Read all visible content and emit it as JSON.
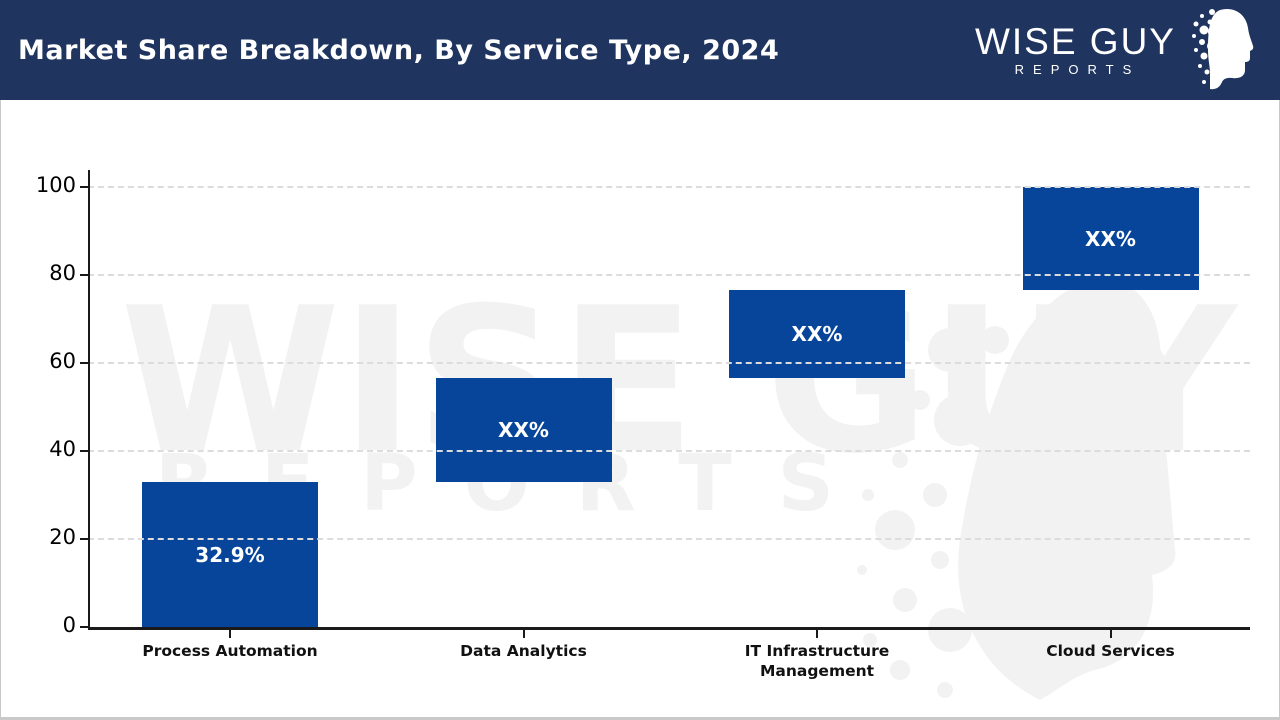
{
  "header": {
    "title": "Market Share Breakdown, By Service Type, 2024",
    "bg_color": "#1f3560",
    "logo": {
      "line1": "WISE GUY",
      "line2": "REPORTS",
      "icon": "dotted-head-logo"
    }
  },
  "watermark": {
    "line1": "WISE GUY",
    "line2": "R E P O R T S",
    "icon": "dotted-head-watermark",
    "color": "#f2f2f2"
  },
  "chart_data": {
    "type": "bar",
    "subtype": "waterfall",
    "title": "Market Share Breakdown, By Service Type, 2024",
    "xlabel": "",
    "ylabel": "",
    "categories": [
      "Process Automation",
      "Data Analytics",
      "IT Infrastructure Management",
      "Cloud Services"
    ],
    "segments": [
      {
        "start": 0,
        "end": 32.9,
        "label": "32.9%"
      },
      {
        "start": 32.9,
        "end": 56.7,
        "label": "XX%"
      },
      {
        "start": 56.7,
        "end": 76.5,
        "label": "XX%"
      },
      {
        "start": 76.5,
        "end": 100,
        "label": "XX%"
      }
    ],
    "values": [
      32.9,
      23.8,
      19.8,
      23.5
    ],
    "yticks": [
      0,
      20,
      40,
      60,
      80,
      100
    ],
    "ylim": [
      0,
      104
    ],
    "grid": true,
    "gridline_style": "dashed",
    "bar_color": "#07459a",
    "bar_label_color": "#ffffff",
    "legend": "none"
  }
}
